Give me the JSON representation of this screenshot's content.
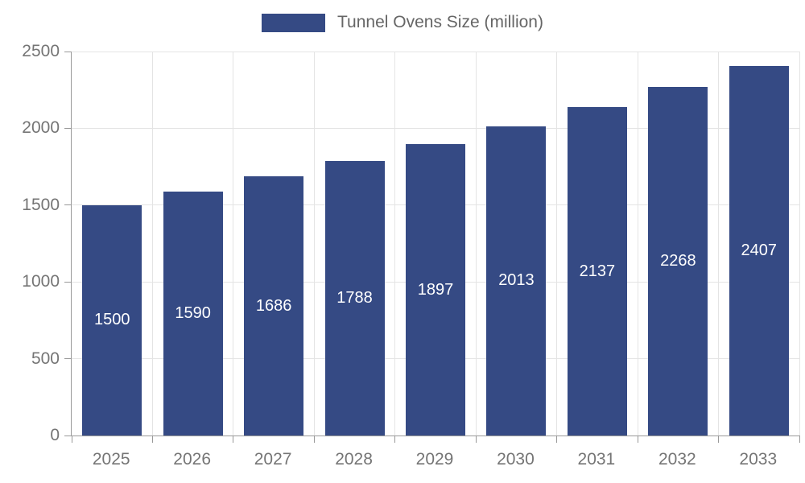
{
  "chart_data": {
    "type": "bar",
    "title": "Tunnel Ovens Size (million)",
    "legend": {
      "label": "Tunnel Ovens Size (million)",
      "position": "top"
    },
    "categories": [
      "2025",
      "2026",
      "2027",
      "2028",
      "2029",
      "2030",
      "2031",
      "2032",
      "2033"
    ],
    "values": [
      1500,
      1590,
      1686,
      1788,
      1897,
      2013,
      2137,
      2268,
      2407
    ],
    "series": [
      {
        "name": "Tunnel Ovens Size (million)",
        "values": [
          1500,
          1590,
          1686,
          1788,
          1897,
          2013,
          2137,
          2268,
          2407
        ]
      }
    ],
    "xlabel": "",
    "ylabel": "",
    "ylim": [
      0,
      2500
    ],
    "yticks": [
      0,
      500,
      1000,
      1500,
      2000,
      2500
    ],
    "grid": true,
    "bar_value_labels_visible": true,
    "colors": {
      "bar": "#354A84",
      "bar_label": "#FFFFFF",
      "axis": "#999999",
      "gridline": "#E4E4E4",
      "tick_label": "#757575",
      "legend_text": "#666666",
      "background": "#FFFFFF"
    }
  }
}
